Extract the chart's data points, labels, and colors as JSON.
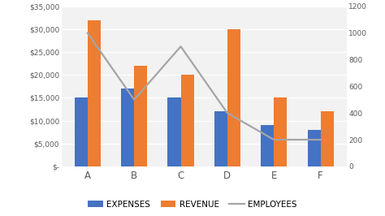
{
  "categories": [
    "A",
    "B",
    "C",
    "D",
    "E",
    "F"
  ],
  "expenses": [
    15000,
    17000,
    15000,
    12000,
    9000,
    8000
  ],
  "revenue": [
    32000,
    22000,
    20000,
    30000,
    15000,
    12000
  ],
  "employees": [
    1000,
    500,
    900,
    400,
    200,
    200
  ],
  "bar_color_expenses": "#4472C4",
  "bar_color_revenue": "#ED7D31",
  "line_color_employees": "#A5A5A5",
  "ylim_left": [
    0,
    35000
  ],
  "ylim_right": [
    0,
    1200
  ],
  "yticks_left": [
    0,
    5000,
    10000,
    15000,
    20000,
    25000,
    30000,
    35000
  ],
  "yticks_right": [
    0,
    200,
    400,
    600,
    800,
    1000,
    1200
  ],
  "ytick_labels_left": [
    "$-",
    "$5,000",
    "$10,000",
    "$15,000",
    "$20,000",
    "$25,000",
    "$30,000",
    "$35,000"
  ],
  "ytick_labels_right": [
    "0",
    "200",
    "400",
    "600",
    "800",
    "1000",
    "1200"
  ],
  "legend_labels": [
    "EXPENSES",
    "REVENUE",
    "EMPLOYEES"
  ],
  "background_color": "#FFFFFF",
  "plot_bg_color": "#F2F2F2",
  "grid_color": "#FFFFFF",
  "bar_width": 0.28,
  "figsize": [
    4.74,
    2.66
  ],
  "dpi": 100
}
